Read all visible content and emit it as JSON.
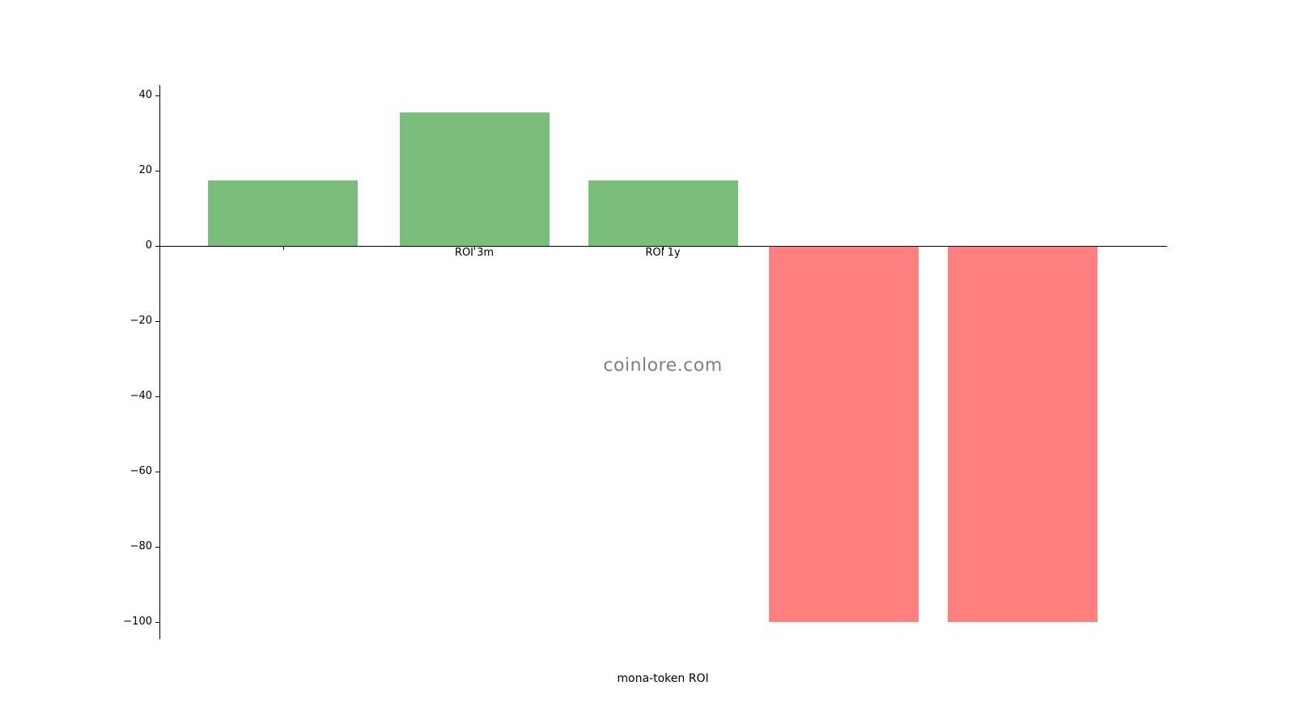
{
  "page": {
    "background": "#ffffff"
  },
  "chart_data": {
    "type": "bar",
    "title": "mona-token ROI",
    "title_position": "bottom-center",
    "watermark": "coinlore.com",
    "categories": [
      "",
      "ROI 3m",
      "ROI 1y",
      "",
      ""
    ],
    "values": [
      17.5,
      35.6,
      17.5,
      -100,
      -100
    ],
    "bar_colors": [
      "#7dbd7c",
      "#7dbd7c",
      "#7dbd7c",
      "#ff8080",
      "#ff8080"
    ],
    "positive_color": "#7dbd7c",
    "negative_color": "#ff8080",
    "y_ticks": [
      40,
      20,
      0,
      -20,
      -40,
      -60,
      -80,
      -100
    ],
    "y_tick_labels": [
      "40",
      "20",
      "0",
      "−20",
      "−40",
      "−60",
      "−80",
      "−100"
    ],
    "ylim": [
      -104,
      43
    ],
    "xlabel": "",
    "ylabel": "",
    "grid": false,
    "legend": false,
    "axis_color": "#000000",
    "text_color": "#000000",
    "watermark_color": "#7f7f7f"
  }
}
